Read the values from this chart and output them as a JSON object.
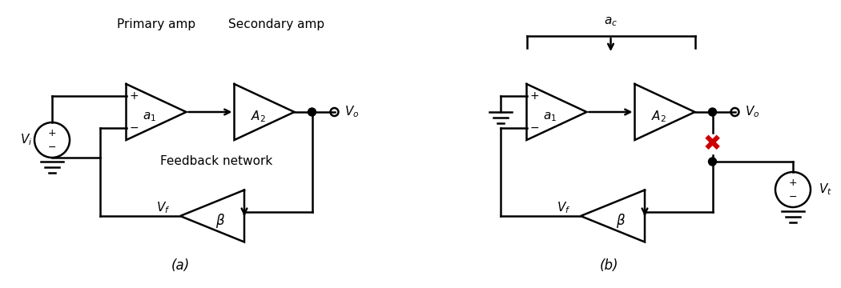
{
  "fig_width": 10.5,
  "fig_height": 3.6,
  "dpi": 100,
  "background": "#ffffff",
  "label_a": "(a)",
  "label_b": "(b)",
  "text_primary_amp": "Primary amp",
  "text_secondary_amp": "Secondary amp",
  "text_feedback": "Feedback network",
  "text_a1": "$a_1$",
  "text_A2": "$A_2$",
  "text_beta": "$\\beta$",
  "text_Vi": "$V_i$",
  "text_Vo": "$V_o$",
  "text_Vf": "$V_f$",
  "text_ac": "$a_c$",
  "text_Vt": "$V_t$",
  "red_x_color": "#cc0000",
  "line_color": "#000000",
  "line_width": 1.8
}
